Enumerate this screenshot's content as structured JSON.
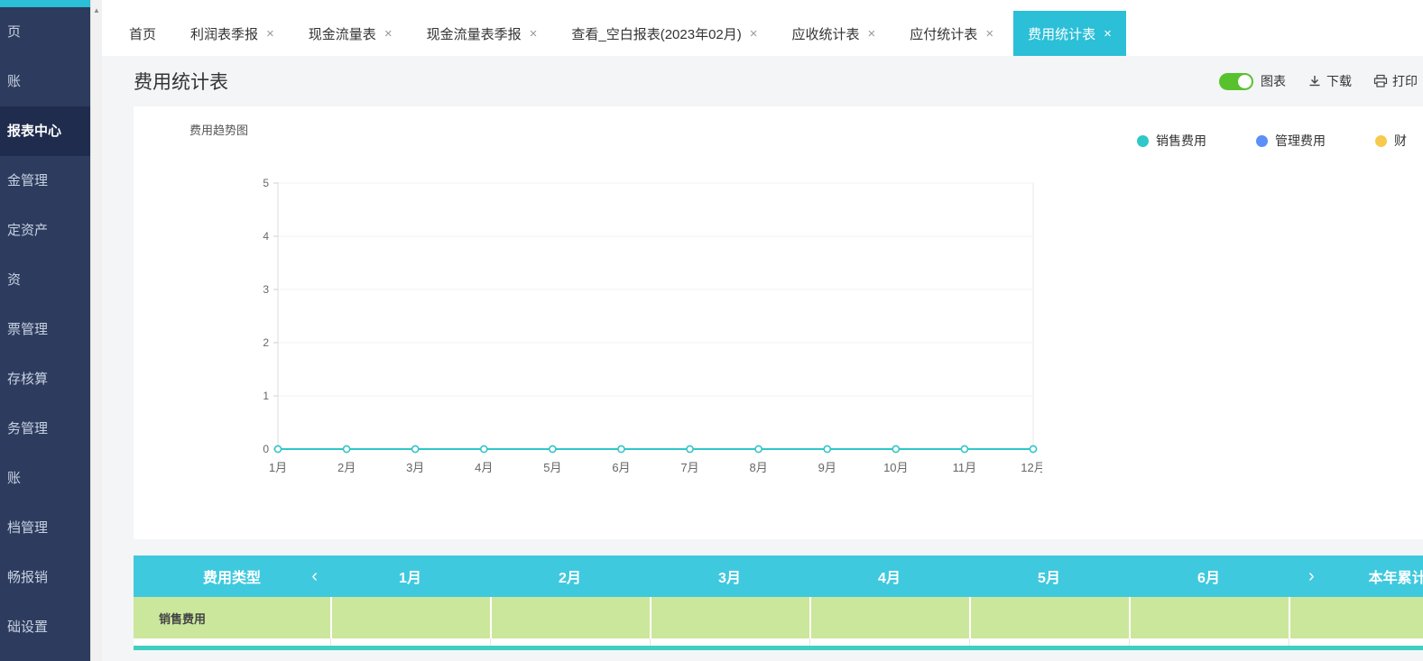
{
  "colors": {
    "accent_cyan": "#2bbfd8",
    "table_header_cyan": "#3fc9de",
    "sidebar_bg": "#2d3c5e",
    "sidebar_active_bg": "#202c4d",
    "row_green": "#cbe79c",
    "toggle_on_green": "#57c22d",
    "bottom_bar_teal": "#3ecfc0"
  },
  "icons": {
    "close": "×",
    "prev": "‹",
    "next": "›",
    "scroll_up": "▲"
  },
  "sidebar": {
    "items": [
      {
        "label": "页"
      },
      {
        "label": "账"
      },
      {
        "label": "报表中心",
        "active": true
      },
      {
        "label": "金管理"
      },
      {
        "label": "定资产"
      },
      {
        "label": "资"
      },
      {
        "label": "票管理"
      },
      {
        "label": "存核算"
      },
      {
        "label": "务管理"
      },
      {
        "label": "账"
      },
      {
        "label": "档管理"
      },
      {
        "label": "畅报销"
      },
      {
        "label": "础设置"
      }
    ]
  },
  "tabs": [
    {
      "label": "首页",
      "closable": false,
      "active": false
    },
    {
      "label": "利润表季报",
      "closable": true,
      "active": false
    },
    {
      "label": "现金流量表",
      "closable": true,
      "active": false
    },
    {
      "label": "现金流量表季报",
      "closable": true,
      "active": false
    },
    {
      "label": "查看_空白报表(2023年02月)",
      "closable": true,
      "active": false
    },
    {
      "label": "应收统计表",
      "closable": true,
      "active": false
    },
    {
      "label": "应付统计表",
      "closable": true,
      "active": false
    },
    {
      "label": "费用统计表",
      "closable": true,
      "active": true
    }
  ],
  "page": {
    "title": "费用统计表",
    "toolbar": {
      "chart_toggle_on": true,
      "chart_toggle_label": "图表",
      "download_label": "下载",
      "print_label": "打印"
    }
  },
  "chart": {
    "title": "费用趋势图",
    "legend": [
      {
        "label": "销售费用",
        "color": "#2fc7c9"
      },
      {
        "label": "管理费用",
        "color": "#5b8ff9"
      },
      {
        "label": "财",
        "color": "#f7ca4d"
      }
    ]
  },
  "chart_data": {
    "type": "line",
    "title": "费用趋势图",
    "categories": [
      "1月",
      "2月",
      "3月",
      "4月",
      "5月",
      "6月",
      "7月",
      "8月",
      "9月",
      "10月",
      "11月",
      "12月"
    ],
    "series": [
      {
        "name": "销售费用",
        "color": "#2fc7c9",
        "values": [
          0,
          0,
          0,
          0,
          0,
          0,
          0,
          0,
          0,
          0,
          0,
          0
        ]
      },
      {
        "name": "管理费用",
        "color": "#5b8ff9",
        "values": [
          0,
          0,
          0,
          0,
          0,
          0,
          0,
          0,
          0,
          0,
          0,
          0
        ]
      },
      {
        "name": "财",
        "color": "#f7ca4d",
        "values": [
          0,
          0,
          0,
          0,
          0,
          0,
          0,
          0,
          0,
          0,
          0,
          0
        ]
      }
    ],
    "ylim": [
      0,
      5
    ],
    "yticks": [
      0,
      1,
      2,
      3,
      4,
      5
    ],
    "grid": true,
    "legend_position": "top-right"
  },
  "table": {
    "headers": [
      "费用类型",
      "1月",
      "2月",
      "3月",
      "4月",
      "5月",
      "6月",
      "本年累计"
    ],
    "rows": [
      {
        "label": "销售费用",
        "values": [
          "",
          "",
          "",
          "",
          "",
          ""
        ]
      }
    ]
  }
}
